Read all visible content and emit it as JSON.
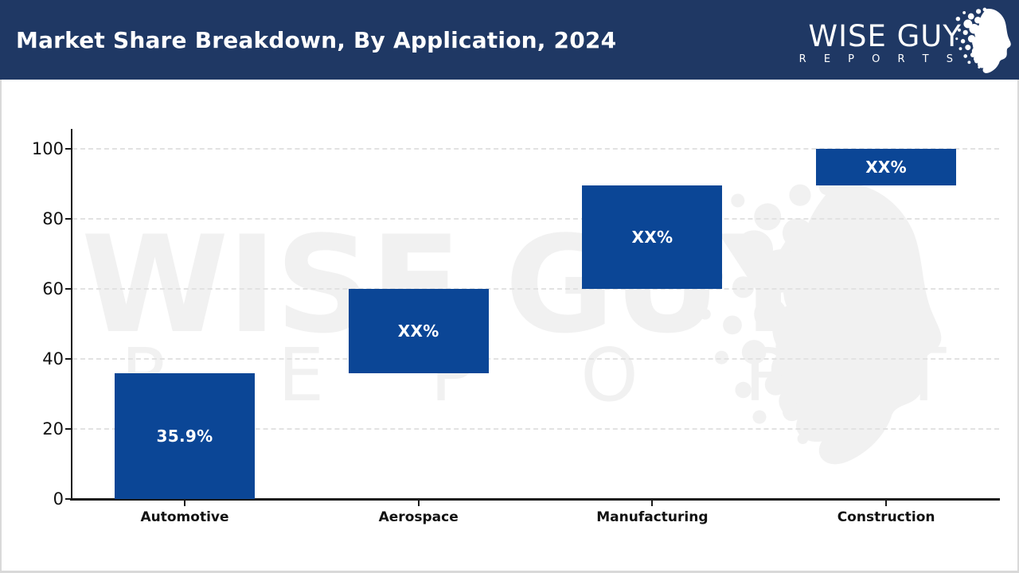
{
  "header": {
    "title": "Market Share Breakdown, By Application, 2024",
    "logo": {
      "line1": "WISE GUY",
      "line2": "R E P O R T S"
    }
  },
  "watermark": {
    "line1": "WISE GUY",
    "line2": "R E P O R T S"
  },
  "colors": {
    "header_bg": "#1f3864",
    "bar_fill": "#0b4696",
    "title_text": "#ffffff",
    "bar_label_text": "#ffffff",
    "axis": "#1a1a1a",
    "gridline": "#e2e2e2",
    "tick_label": "#111111",
    "watermark": "#f1f1f1"
  },
  "chart_data": {
    "type": "bar",
    "subtype": "waterfall",
    "title": "Market Share Breakdown, By Application, 2024",
    "categories": [
      "Automotive",
      "Aerospace",
      "Manufacturing",
      "Construction"
    ],
    "series": [
      {
        "name": "Automotive",
        "start": 0,
        "end": 35.9,
        "label": "35.9%"
      },
      {
        "name": "Aerospace",
        "start": 35.9,
        "end": 60.0,
        "label": "XX%"
      },
      {
        "name": "Manufacturing",
        "start": 60.0,
        "end": 89.5,
        "label": "XX%"
      },
      {
        "name": "Construction",
        "start": 89.5,
        "end": 100.0,
        "label": "XX%"
      }
    ],
    "xlabel": "",
    "ylabel": "",
    "ylim": [
      0,
      105
    ],
    "yticks": [
      0,
      20,
      40,
      60,
      80,
      100
    ],
    "grid": "horizontal-dashed",
    "legend": "none"
  }
}
